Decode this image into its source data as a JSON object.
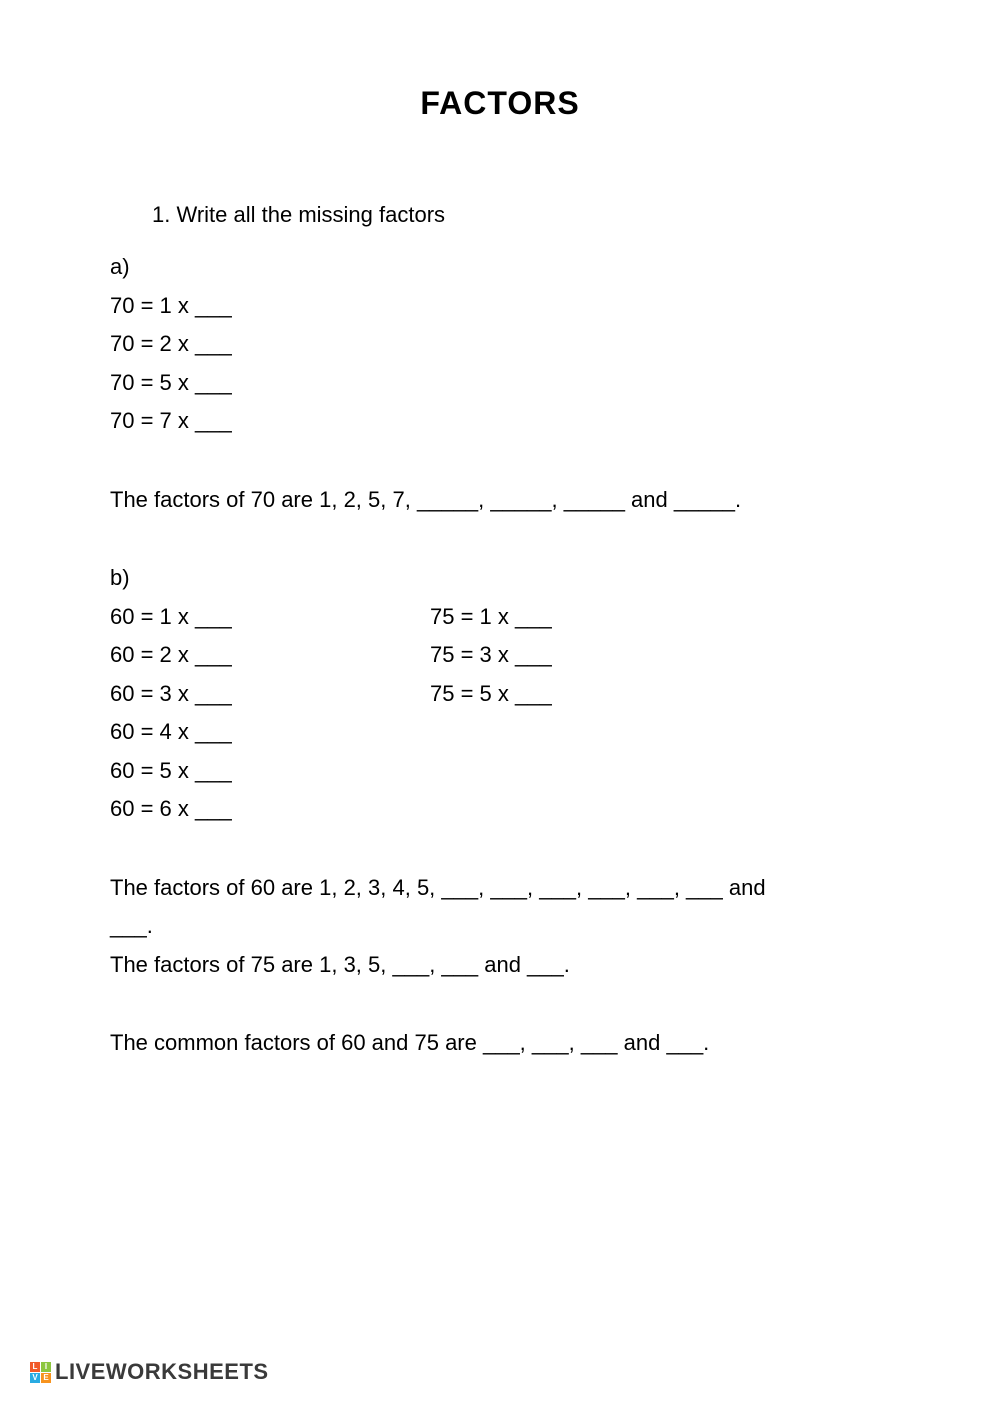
{
  "title": "FACTORS",
  "instruction": "1.  Write all the missing factors",
  "partA": {
    "label": "a)",
    "eq1": "70 = 1 x ___",
    "eq2": "70 = 2 x ___",
    "eq3": "70 = 5 x ___",
    "eq4": "70 = 7 x ___",
    "summary": "The factors of 70 are 1, 2, 5, 7, _____, _____, _____ and _____."
  },
  "partB": {
    "label": "b)",
    "left": {
      "eq1": "60 = 1 x ___",
      "eq2": "60 = 2 x ___",
      "eq3": "60 = 3 x ___",
      "eq4": "60 = 4 x ___",
      "eq5": "60 = 5 x ___",
      "eq6": "60 = 6 x ___"
    },
    "right": {
      "eq1": "75 = 1 x ___",
      "eq2": "75 = 3 x ___",
      "eq3": "75 = 5 x ___"
    },
    "summary60a": "The factors of 60 are 1, 2, 3, 4, 5, ___, ___, ___, ___, ___, ___ and",
    "summary60b": "___.",
    "summary75": "The factors of 75 are 1, 3, 5, ___, ___ and ___.",
    "common": "The common factors of 60 and 75 are ___, ___, ___ and ___."
  },
  "footer": {
    "brand": "LIVEWORKSHEETS",
    "icon_colors": [
      "#f15a29",
      "#8dc63f",
      "#29abe2",
      "#f7931e"
    ],
    "icon_letters": [
      "L",
      "I",
      "V",
      "E"
    ]
  }
}
